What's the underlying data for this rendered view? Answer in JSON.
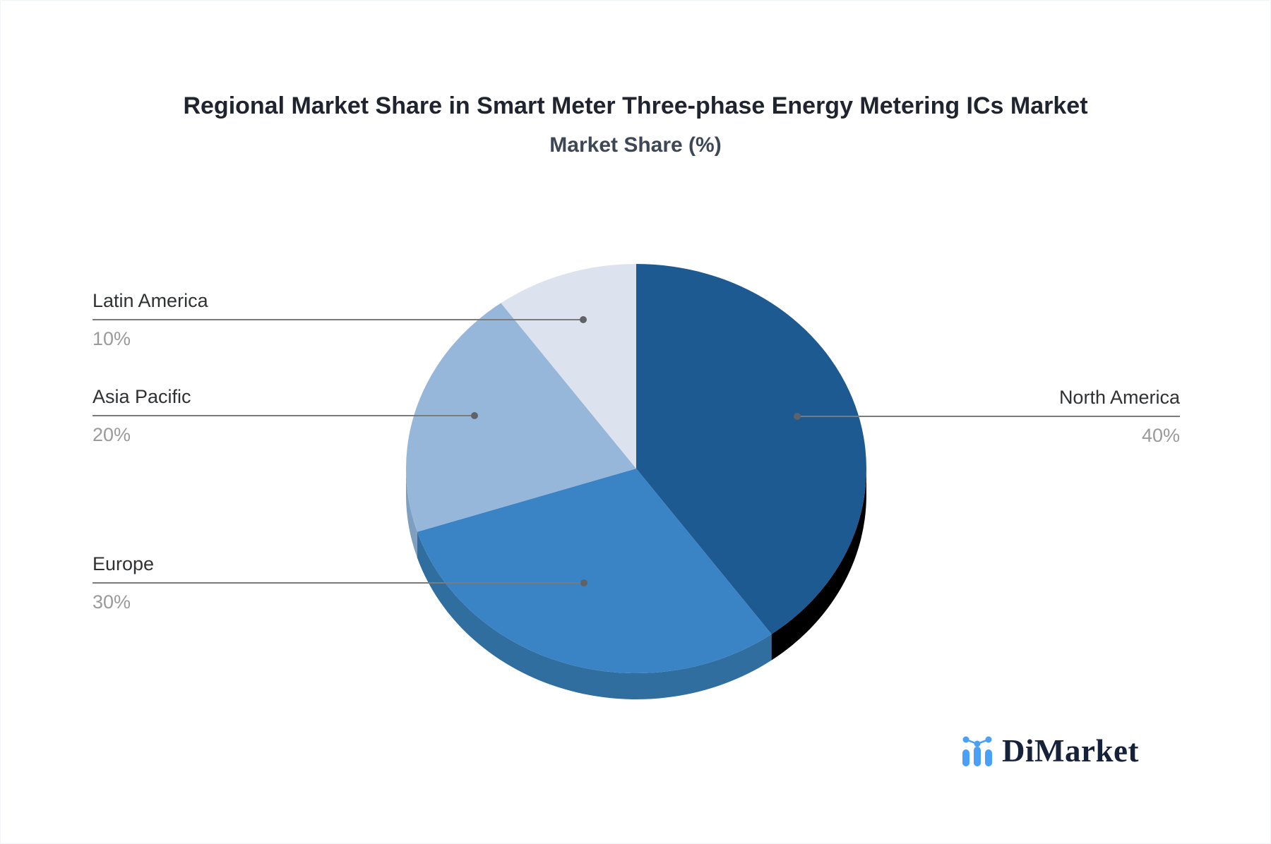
{
  "chart_data": {
    "type": "pie",
    "style": "3d-pie",
    "title": "Regional Market Share in Smart Meter Three-phase Energy Metering ICs Market",
    "subtitle": "Market Share (%)",
    "unit": "%",
    "direction": "clockwise",
    "start_angle": "12-oclock",
    "categories": [
      "North America",
      "Europe",
      "Asia Pacific",
      "Latin America"
    ],
    "values": [
      40,
      30,
      20,
      10
    ],
    "value_labels": [
      "40%",
      "30%",
      "20%",
      "10%"
    ],
    "colors": [
      "#1d5a91",
      "#3a84c6",
      "#97b7da",
      "#dde3ee"
    ],
    "side_colors": [
      "#15filtered",
      "#2f6e9f",
      "#7f9fc1",
      "#c8d1e0"
    ],
    "legend_position": "callout-labels",
    "label_color": "#2f3133",
    "value_color": "#9a9a9a",
    "leader_line_color": "#7b7b7b",
    "leader_dot_color": "#5f6368"
  },
  "logo": {
    "text": "DiMarket",
    "icon": "bar-chart-logo-icon",
    "text_color": "#15223a",
    "icon_color": "#49a0f6"
  }
}
